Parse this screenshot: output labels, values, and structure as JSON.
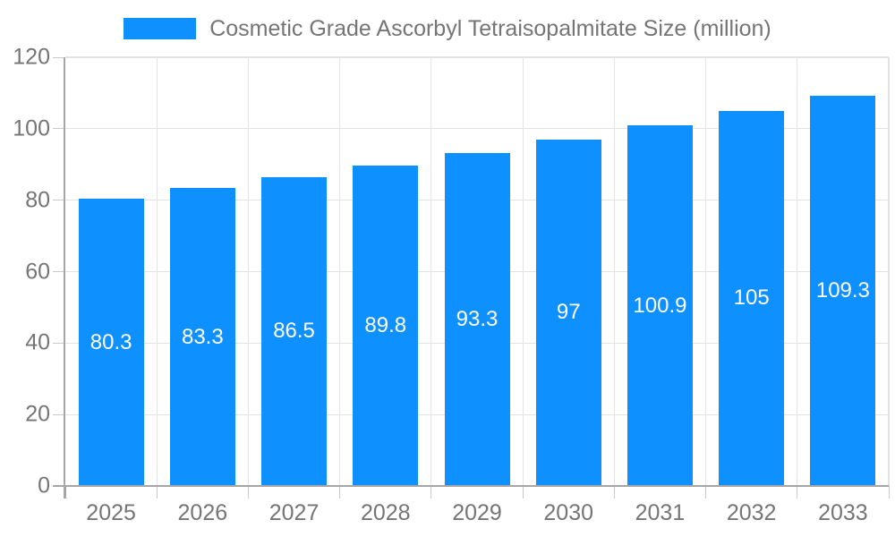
{
  "chart_data": {
    "type": "bar",
    "title": "Cosmetic Grade Ascorbyl Tetraisopalmitate Size (million)",
    "categories": [
      "2025",
      "2026",
      "2027",
      "2028",
      "2029",
      "2030",
      "2031",
      "2032",
      "2033"
    ],
    "series": [
      {
        "name": "Cosmetic Grade Ascorbyl Tetraisopalmitate Size (million)",
        "values": [
          80.3,
          83.3,
          86.5,
          89.8,
          93.3,
          97,
          100.9,
          105,
          109.3
        ]
      }
    ],
    "value_labels": [
      "80.3",
      "83.3",
      "86.5",
      "89.8",
      "93.3",
      "97",
      "100.9",
      "105",
      "109.3"
    ],
    "xlabel": "",
    "ylabel": "",
    "ylim": [
      0,
      120
    ],
    "yticks": [
      0,
      20,
      40,
      60,
      80,
      100,
      120
    ],
    "grid": true,
    "legend_position": "top",
    "colors": {
      "bar": "#0f90ff",
      "bar_label": "#ffffff",
      "axis_line": "#a6a6a6",
      "gridline": "#e3e3e3",
      "tick": "#c9c9c9",
      "text": "#757575",
      "background": "#ffffff"
    }
  }
}
